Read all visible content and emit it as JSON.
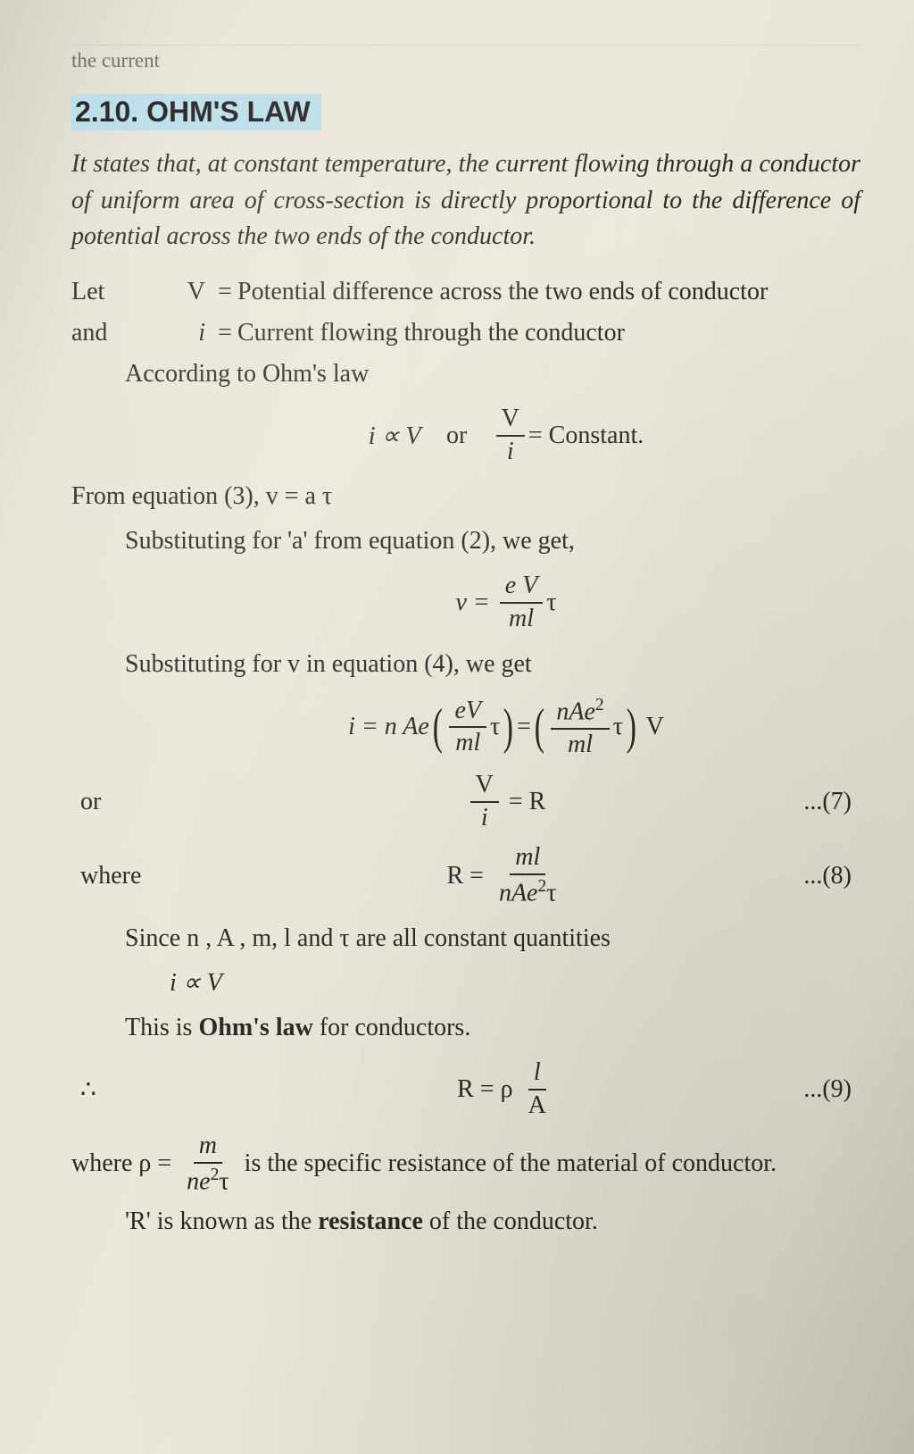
{
  "page": {
    "background_color": "#e8e4d8",
    "text_color": "#2a2826",
    "highlight_color": "#b8dce8",
    "font_body": "Georgia, Times New Roman, serif",
    "font_header": "Arial, sans-serif",
    "body_fontsize_pt": 21,
    "header_fontsize_pt": 24
  },
  "prev_fragment": "the current",
  "header": {
    "number": "2.10.",
    "title": "OHM'S LAW"
  },
  "statement": "It states that, at constant temperature, the current flowing through a conductor of uniform area of cross-section is directly proportional to the difference of potential across the two ends of the conductor.",
  "defs": {
    "let_label": "Let",
    "and_label": "and",
    "v_sym": "V",
    "v_def": "Potential difference across the two ends of conductor",
    "i_sym": "i",
    "i_def": "Current flowing through the conductor"
  },
  "lines": {
    "according": "According to Ohm's law",
    "i_prop_v": "i ∝ V",
    "or_word": "or",
    "const_eq_rhs": "= Constant.",
    "from_eq3": "From equation (3), v = a τ",
    "sub_a": "Substituting for 'a' from equation (2), we get,",
    "sub_v": "Substituting for v in equation (4), we get",
    "or_label": "or",
    "where_label": "where",
    "eq7_num": "...(7)",
    "eq8_num": "...(8)",
    "eq9_num": "...(9)",
    "since_const": "Since n , A , m, l and τ are all constant quantities",
    "i_prop_v2": "i ∝ V",
    "ohms_law_concl": "This is Ohm's law for conductors.",
    "therefore_sym": "∴",
    "where_rho": "is the specific resistance of the material of conductor.",
    "r_known": "'R' is known as the resistance of the conductor.",
    "bold_ohms": "Ohm's law",
    "bold_resistance": "resistance"
  },
  "equations": {
    "frac_V_i": {
      "num": "V",
      "den": "i"
    },
    "v_eq": {
      "lhs": "v =",
      "frac_num": "e V",
      "frac_den": "ml",
      "tail": "τ"
    },
    "i_eq": {
      "lhs": "i = n Ae",
      "f1_num": "eV",
      "f1_den": "ml",
      "f1_tail": "τ",
      "mid": "=",
      "f2_num": "nAe",
      "f2_sup": "2",
      "f2_den": "ml",
      "f2_tail": "τ",
      "rhs": "V"
    },
    "VR": {
      "lhs_num": "V",
      "lhs_den": "i",
      "rhs": "= R"
    },
    "R_def": {
      "lhs": "R =",
      "num": "ml",
      "den_pre": "nAe",
      "den_sup": "2",
      "den_post": "τ"
    },
    "R_rho": {
      "lhs": "R = ρ",
      "num": "l",
      "den": "A"
    },
    "rho_def": {
      "lhs": "where ρ =",
      "num": "m",
      "den_pre": "ne",
      "den_sup": "2",
      "den_post": "τ"
    }
  }
}
